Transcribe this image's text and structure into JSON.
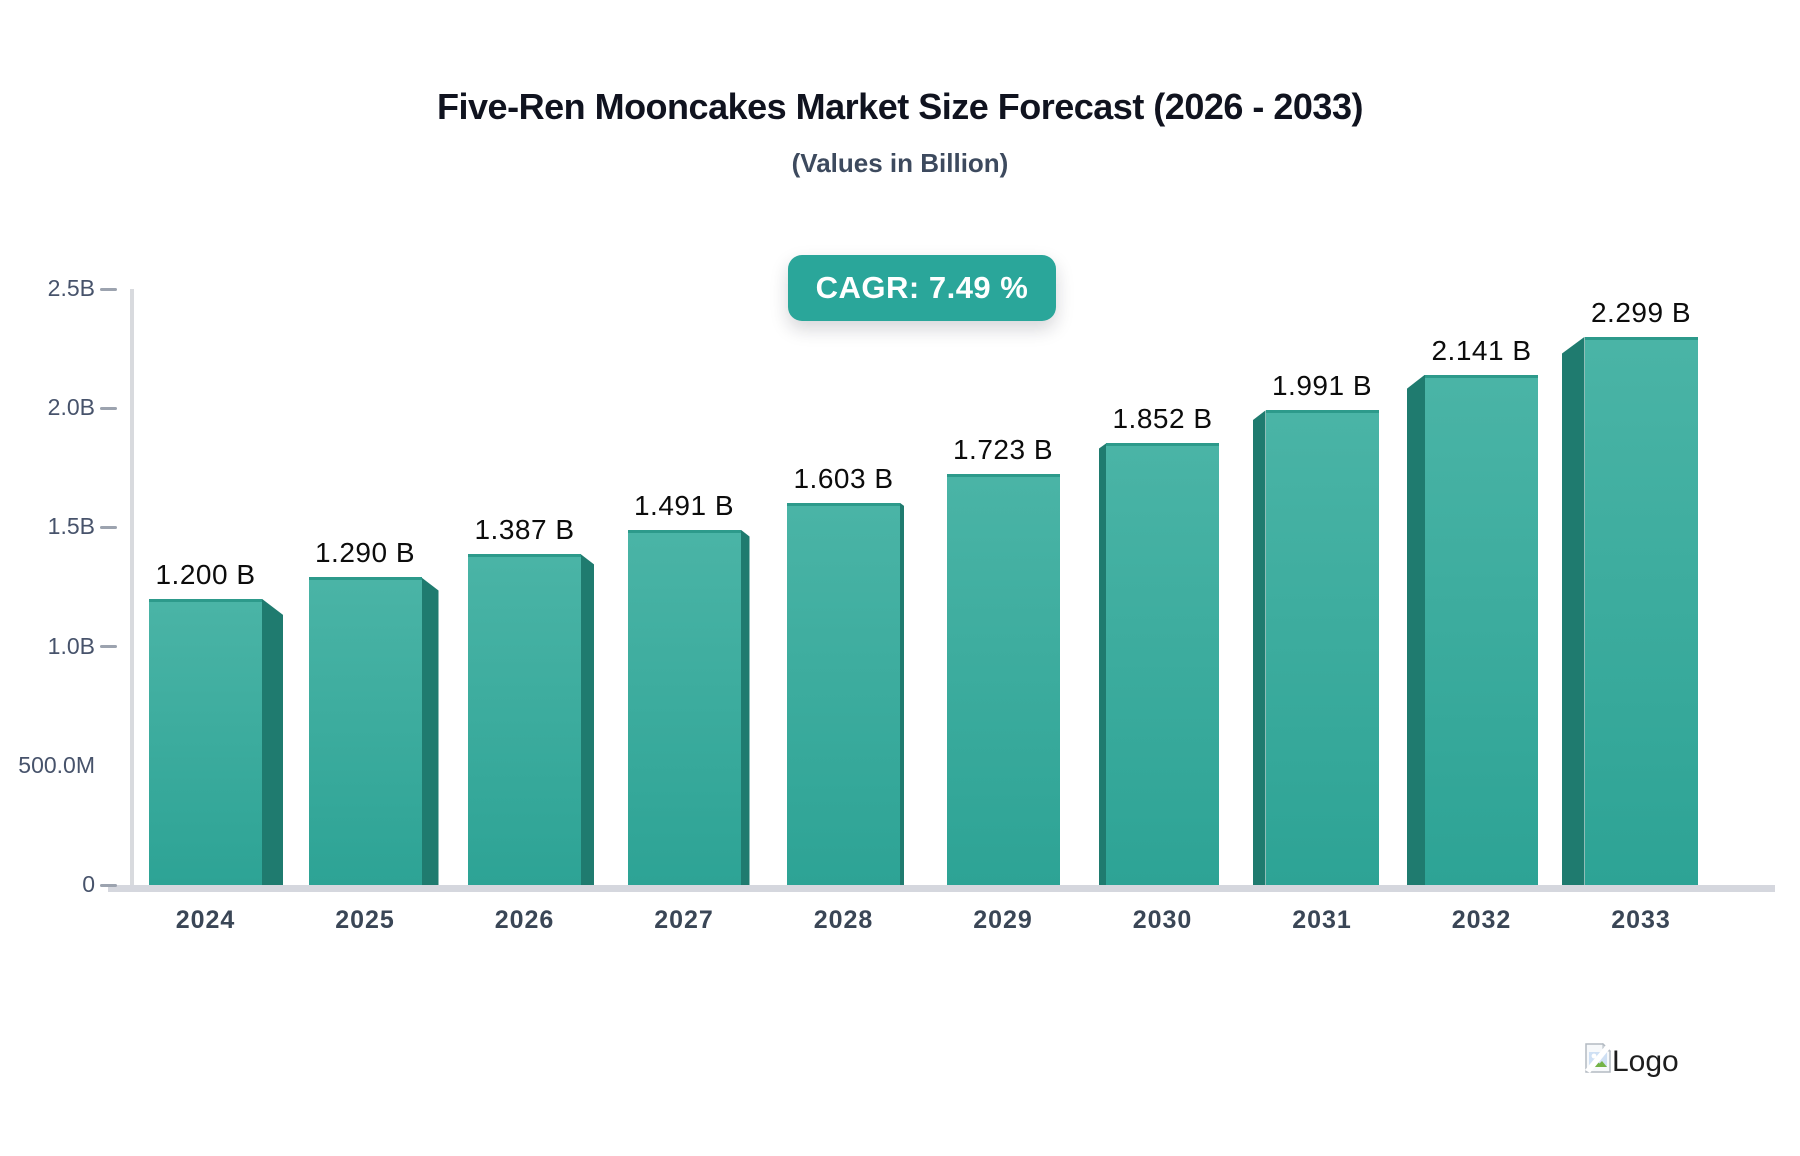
{
  "header": {
    "title": "Five-Ren Mooncakes Market Size Forecast (2026 - 2033)",
    "subtitle": "(Values in Billion)"
  },
  "badge": {
    "label": "CAGR: 7.49 %",
    "background": "#2aa69a",
    "text_color": "#ffffff"
  },
  "chart_data": {
    "type": "bar",
    "title": "Five-Ren Mooncakes Market Size Forecast (2026 - 2033)",
    "subtitle": "(Values in Billion)",
    "cagr_label": "CAGR: 7.49 %",
    "categories": [
      "2024",
      "2025",
      "2026",
      "2027",
      "2028",
      "2029",
      "2030",
      "2031",
      "2032",
      "2033"
    ],
    "values": [
      1.2,
      1.29,
      1.387,
      1.491,
      1.603,
      1.723,
      1.852,
      1.991,
      2.141,
      2.299
    ],
    "value_labels": [
      "1.200 B",
      "1.290 B",
      "1.387 B",
      "1.491 B",
      "1.603 B",
      "1.723 B",
      "1.852 B",
      "1.991 B",
      "2.141 B",
      "2.299 B"
    ],
    "unit": "Billion",
    "xlabel": "",
    "ylabel": "",
    "ylim": [
      0,
      2.5
    ],
    "grid": "off",
    "legend": "none",
    "y_ticks": [
      {
        "label": "2.5B",
        "value": 2.5,
        "dash": true
      },
      {
        "label": "2.0B",
        "value": 2.0,
        "dash": true
      },
      {
        "label": "1.5B",
        "value": 1.5,
        "dash": true
      },
      {
        "label": "1.0B",
        "value": 1.0,
        "dash": true
      },
      {
        "label": "500.0M",
        "value": 0.5,
        "dash": false
      },
      {
        "label": "0",
        "value": 0.0,
        "dash": true
      }
    ],
    "colors": {
      "bar_front_top": "#4ab4a6",
      "bar_front_bottom": "#2da395",
      "bar_top_edge": "#2d9a8b",
      "bar_side": "#1f7b6f",
      "axis_line": "#d8dade",
      "baseline": "#d5d7de",
      "tick_dash": "#9ca3af",
      "tick_text": "#47536b",
      "category_text": "#3a4656",
      "value_text": "#0c0c0c"
    }
  },
  "footer": {
    "logo_text": "Logo"
  }
}
